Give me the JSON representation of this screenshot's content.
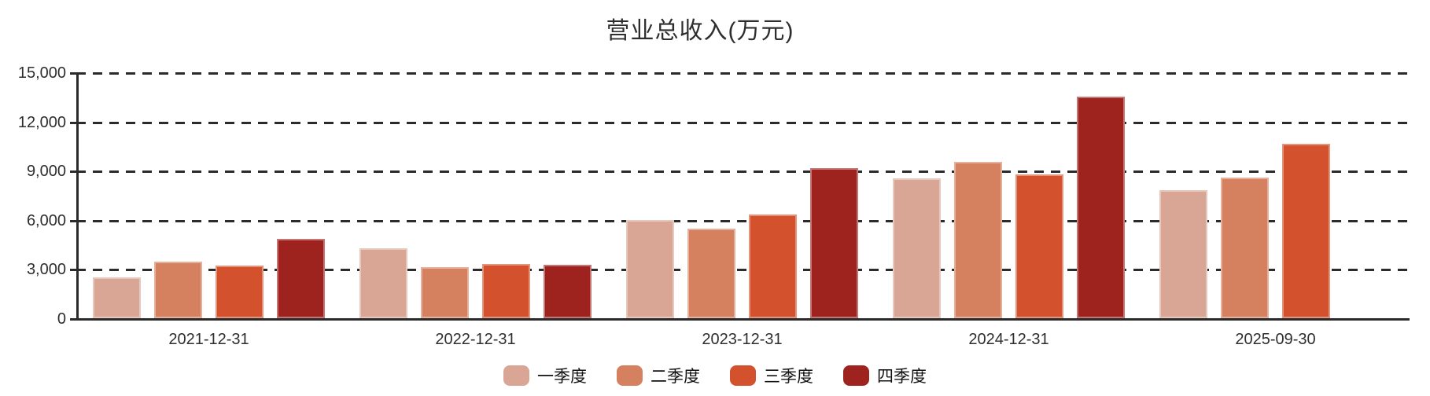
{
  "title": "营业总收入(万元)",
  "chart_data": {
    "type": "bar",
    "title": "营业总收入(万元)",
    "xlabel": "",
    "ylabel": "万元",
    "categories": [
      "2021-12-31",
      "2022-12-31",
      "2023-12-31",
      "2024-12-31",
      "2025-09-30"
    ],
    "series": [
      {
        "name": "一季度",
        "color": "#D9A695",
        "values": [
          2550,
          4300,
          6050,
          8580,
          7860
        ]
      },
      {
        "name": "二季度",
        "color": "#D5805F",
        "values": [
          3500,
          3150,
          5500,
          9600,
          8630
        ]
      },
      {
        "name": "三季度",
        "color": "#D4512E",
        "values": [
          3250,
          3340,
          6370,
          8800,
          10700
        ]
      },
      {
        "name": "四季度",
        "color": "#9E231F",
        "values": [
          4880,
          3290,
          9200,
          13550,
          null
        ]
      }
    ],
    "ylim": [
      0,
      15000
    ],
    "yticks": [
      0,
      3000,
      6000,
      9000,
      12000,
      15000
    ],
    "ytick_labels": [
      "0",
      "3,000",
      "6,000",
      "9,000",
      "12,000",
      "15,000"
    ],
    "grid": "horizontal-dashed",
    "legend_position": "bottom",
    "axis_color": "#2b2b2b",
    "text_color": "#2e2e2e"
  }
}
